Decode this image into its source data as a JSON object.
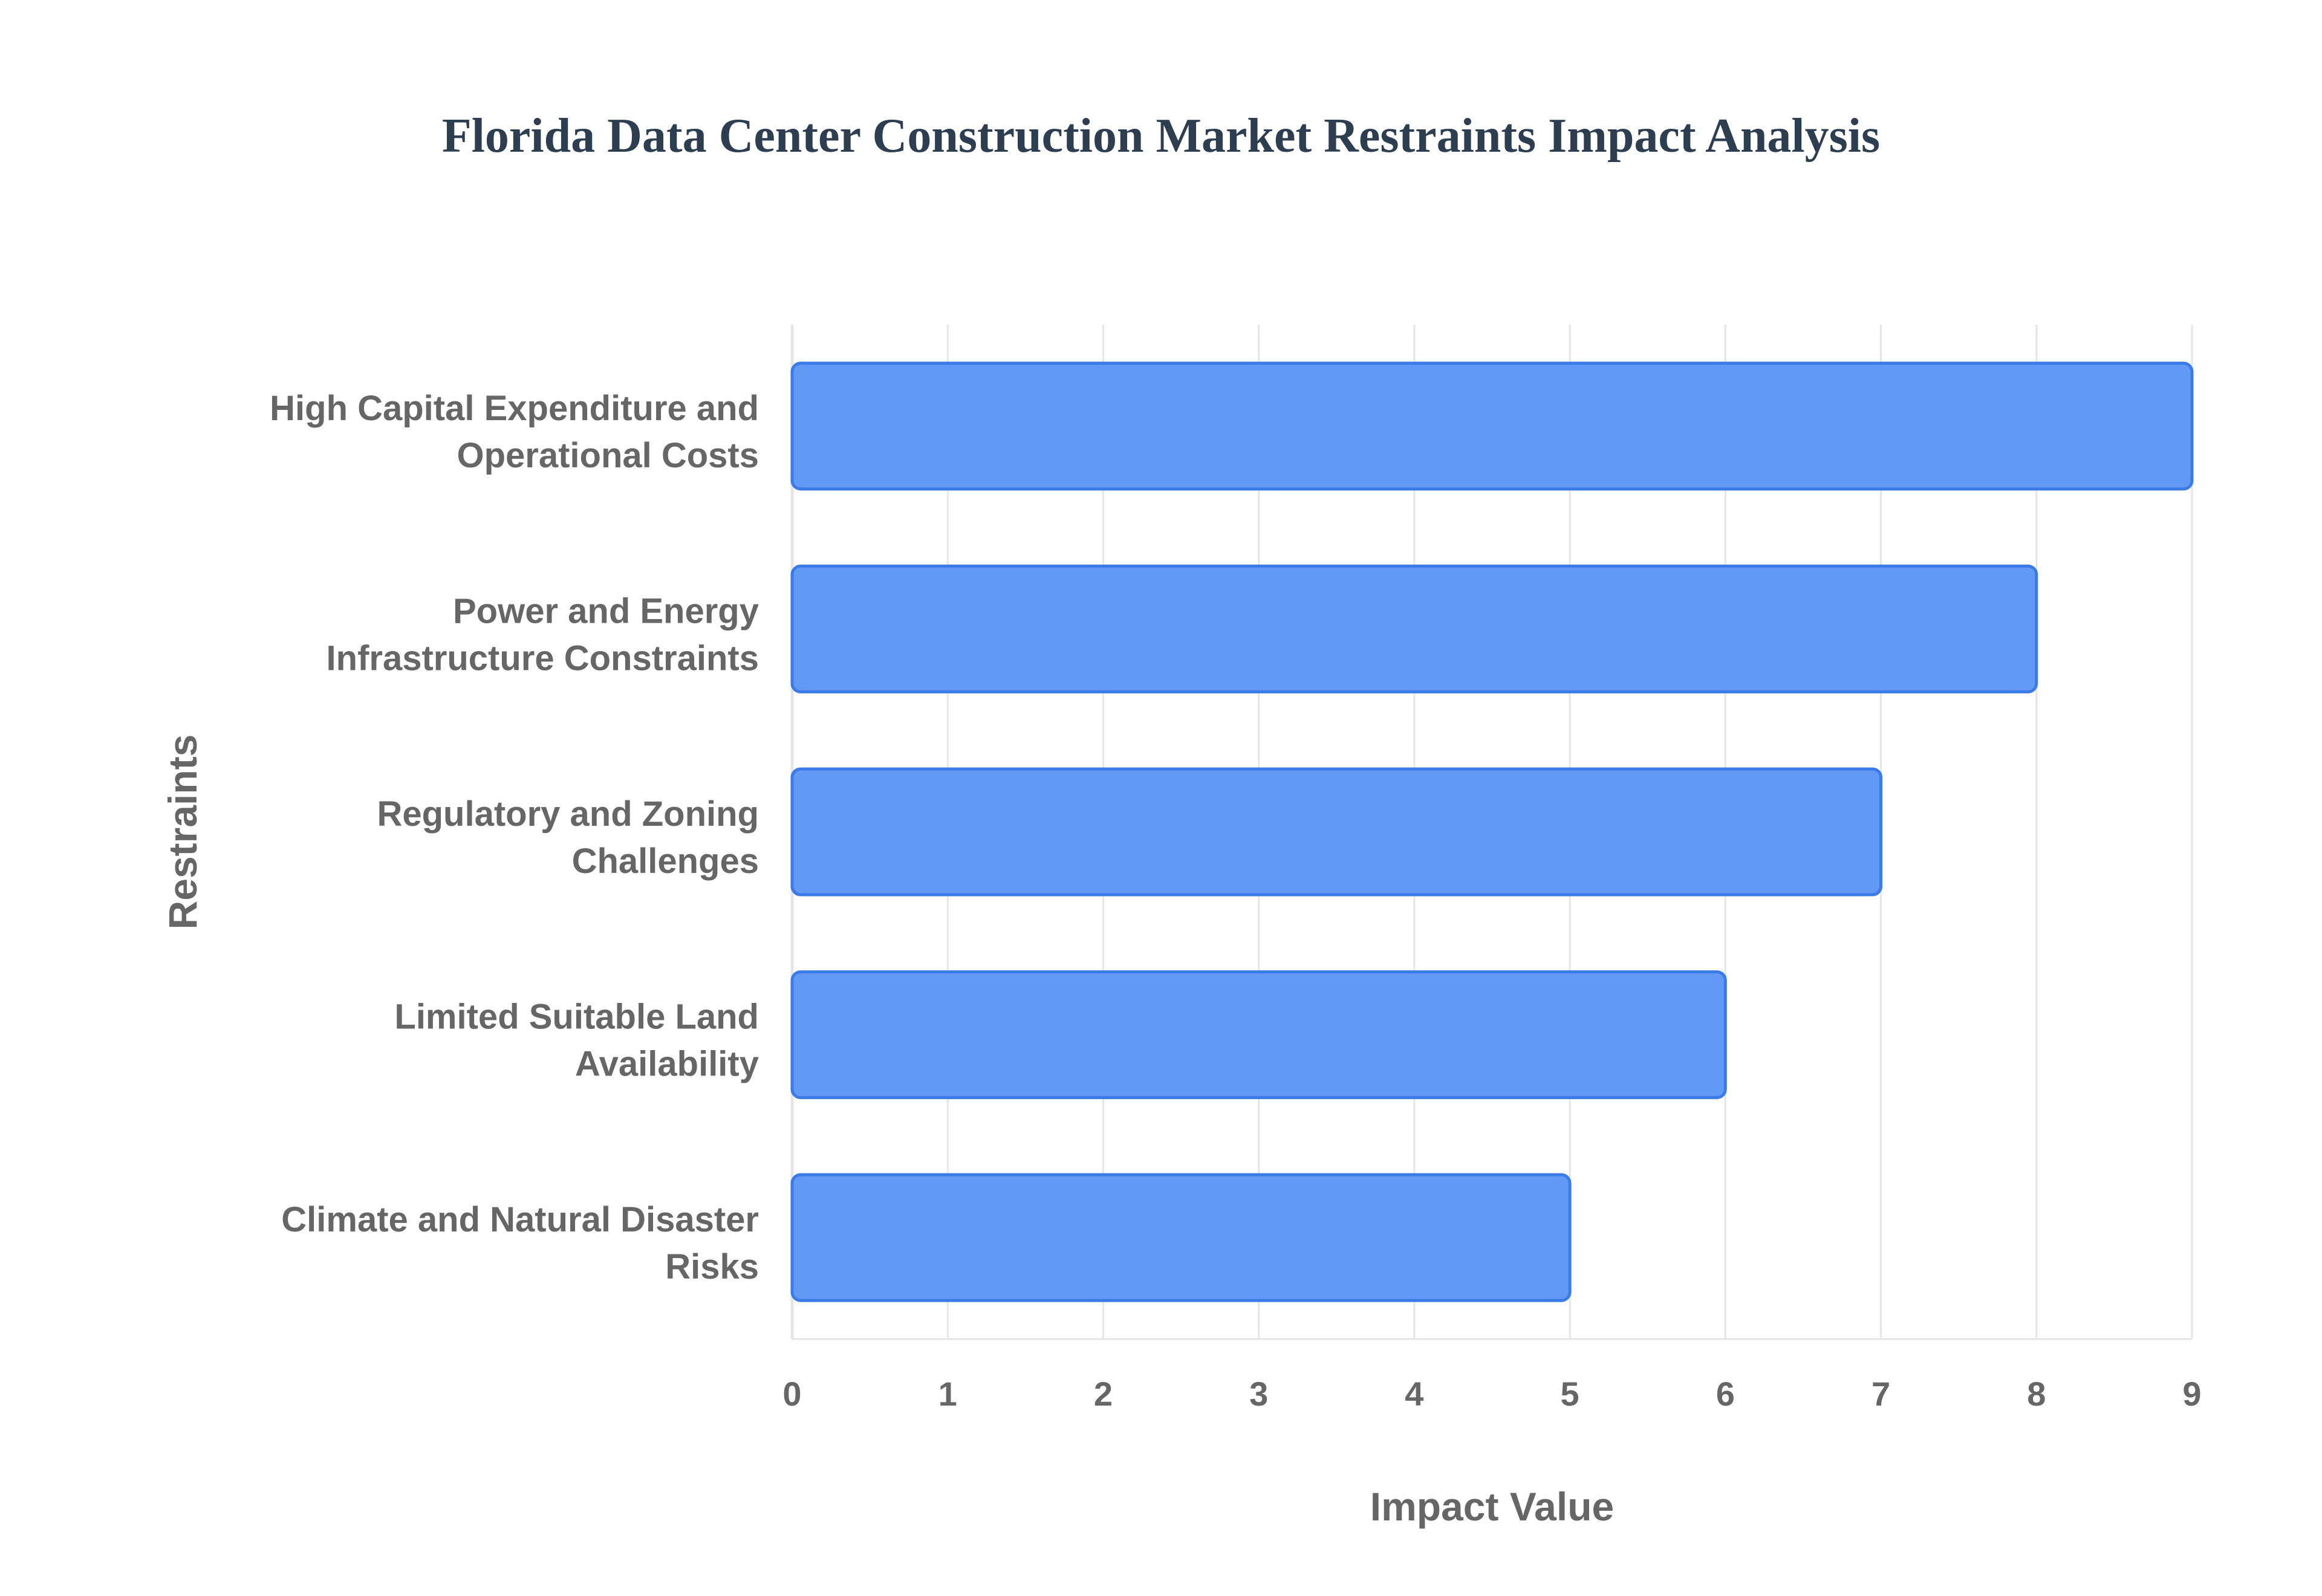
{
  "chart_data": {
    "type": "bar",
    "orientation": "horizontal",
    "title": "Florida Data Center Construction Market Restraints Impact Analysis",
    "xlabel": "Impact Value",
    "ylabel": "Restraints",
    "categories": [
      [
        "High Capital Expenditure and",
        "Operational Costs"
      ],
      [
        "Power and Energy",
        "Infrastructure Constraints"
      ],
      [
        "Regulatory and Zoning",
        "Challenges"
      ],
      [
        "Limited Suitable Land",
        "Availability"
      ],
      [
        "Climate and Natural Disaster",
        "Risks"
      ]
    ],
    "values": [
      9,
      8,
      7,
      6,
      5
    ],
    "xlim": [
      0,
      9
    ],
    "xticks": [
      0,
      1,
      2,
      3,
      4,
      5,
      6,
      7,
      8,
      9
    ],
    "grid": true,
    "legend": "none",
    "colors": {
      "bar_fill": "#6199f5",
      "bar_border": "#3b7be8",
      "grid": "#e5e5e5",
      "text": "#666666",
      "title": "#2c3e50"
    }
  }
}
